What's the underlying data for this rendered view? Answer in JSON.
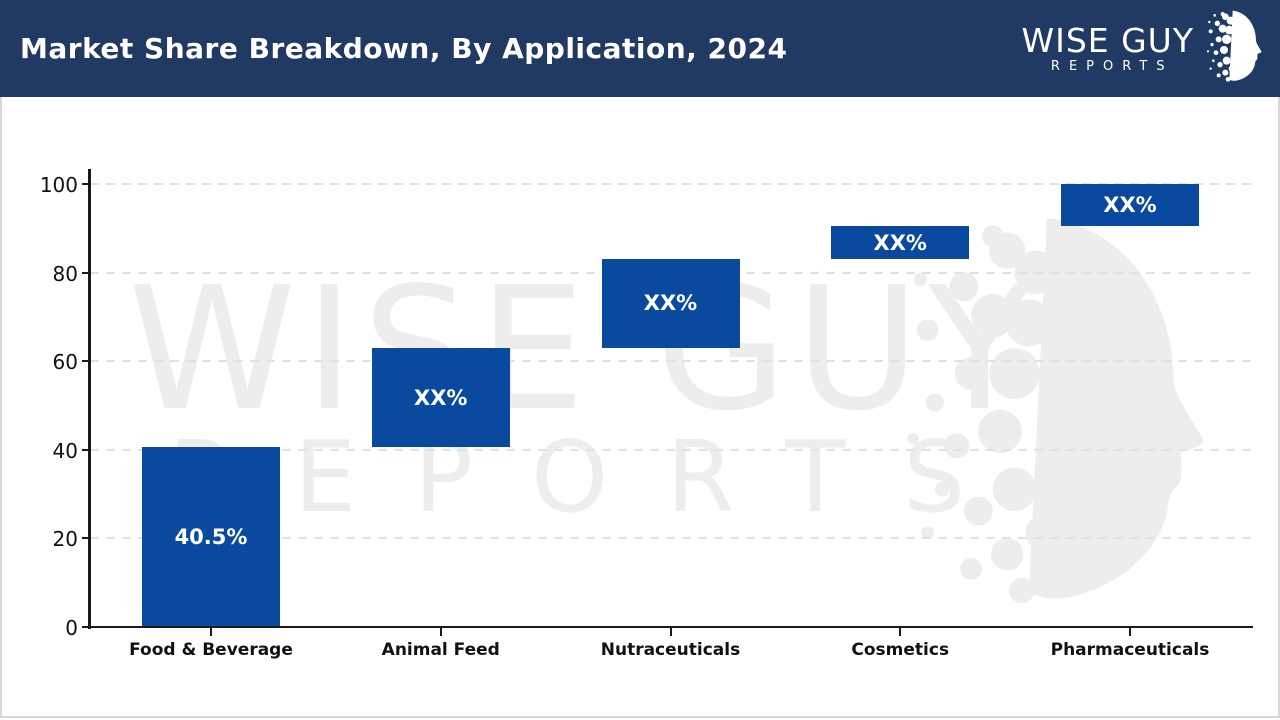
{
  "header": {
    "title": "Market Share Breakdown, By Application, 2024",
    "background_color": "#213a64",
    "logo": {
      "line1": "WISE GUY",
      "line2": "REPORTS"
    }
  },
  "watermark": {
    "line1": "WISE GUY",
    "line2": "REPORTS"
  },
  "chart_data": {
    "type": "bar",
    "subtype": "waterfall",
    "title": "Market Share Breakdown, By Application, 2024",
    "xlabel": "",
    "ylabel": "",
    "categories": [
      "Food & Beverage",
      "Animal Feed",
      "Nutraceuticals",
      "Cosmetics",
      "Pharmaceuticals"
    ],
    "segments": [
      {
        "category": "Food & Beverage",
        "start": 0,
        "end": 40.5,
        "label": "40.5%"
      },
      {
        "category": "Animal Feed",
        "start": 40.5,
        "end": 63,
        "label": "XX%"
      },
      {
        "category": "Nutraceuticals",
        "start": 63,
        "end": 83,
        "label": "XX%"
      },
      {
        "category": "Cosmetics",
        "start": 83,
        "end": 90.5,
        "label": "XX%"
      },
      {
        "category": "Pharmaceuticals",
        "start": 90.5,
        "end": 100,
        "label": "XX%"
      }
    ],
    "y_ticks": [
      "0",
      "20",
      "40",
      "60",
      "80",
      "100"
    ],
    "ylim": [
      0,
      105
    ],
    "grid": "horizontal-dashed",
    "legend": "none",
    "bar_color": "#0a4a9e",
    "bar_label_color": "#ffffff",
    "axis_color": "#1a1a1a",
    "grid_color": "#e2e2e2",
    "watermark_color": "#ededed"
  }
}
